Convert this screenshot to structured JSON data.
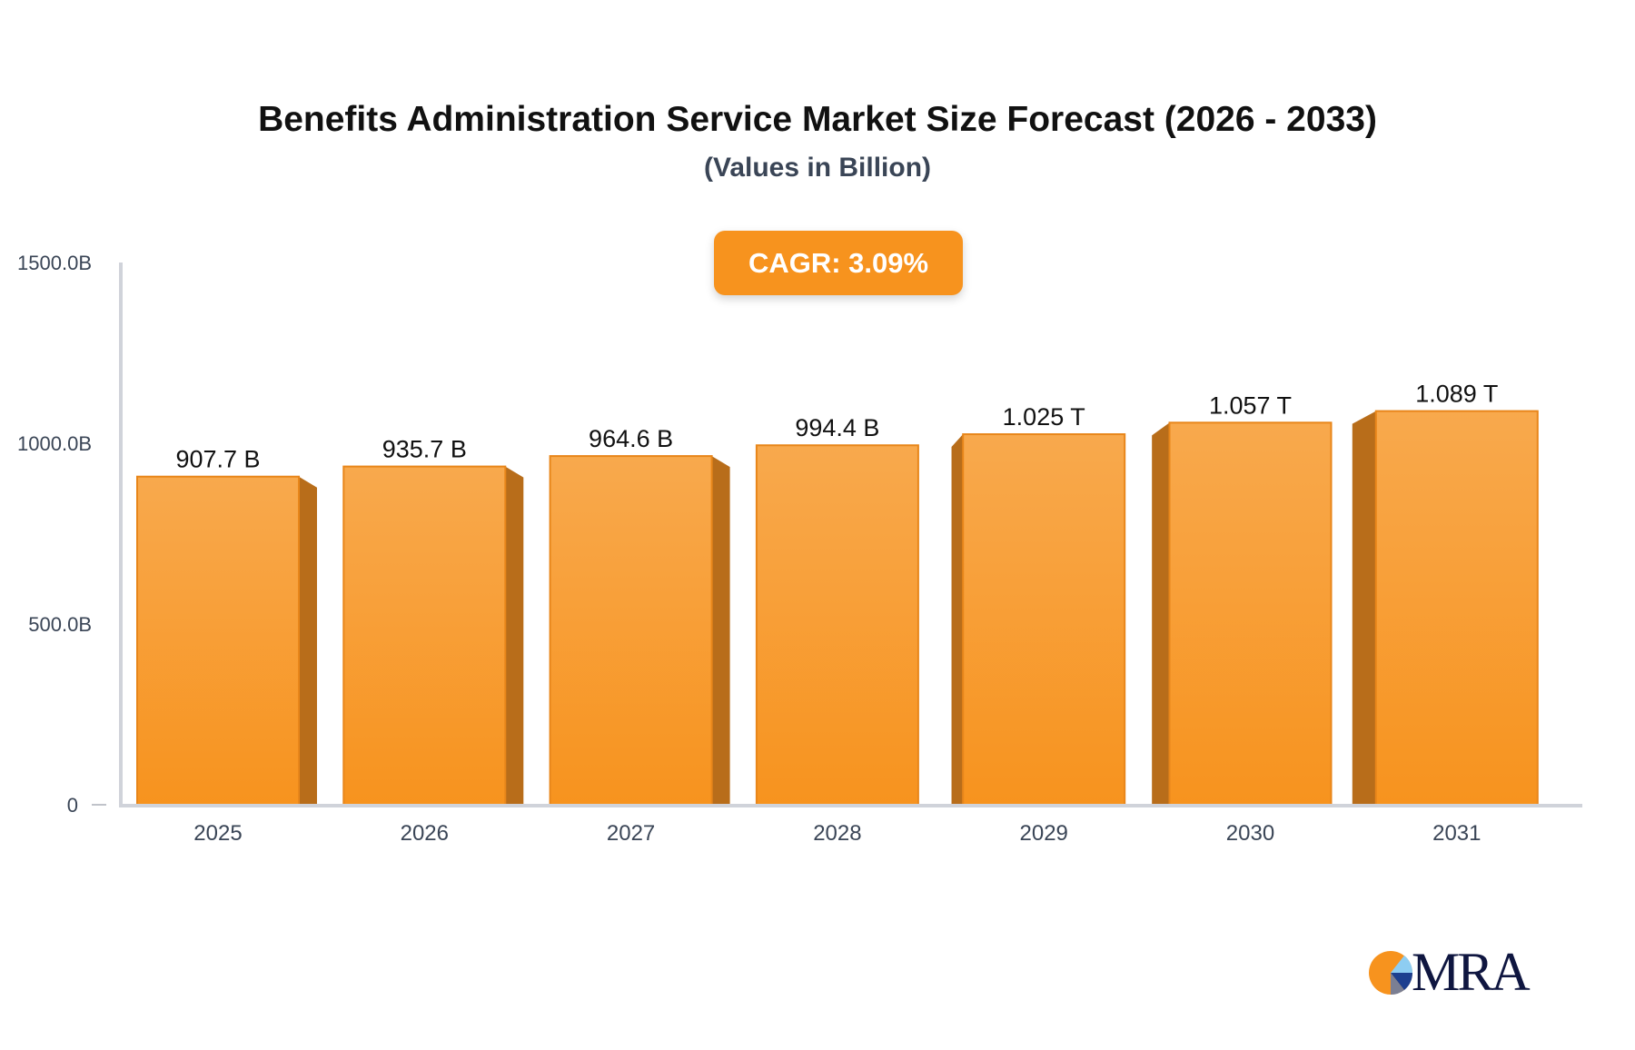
{
  "chart_data": {
    "type": "bar",
    "title": "Benefits Administration Service Market Size Forecast (2026 - 2033)",
    "subtitle": "(Values in Billion)",
    "annotation": "CAGR: 3.09%",
    "categories": [
      "2025",
      "2026",
      "2027",
      "2028",
      "2029",
      "2030",
      "2031"
    ],
    "values": [
      907.7,
      935.7,
      964.6,
      994.4,
      1025,
      1057,
      1089
    ],
    "data_labels": [
      "907.7 B",
      "935.7 B",
      "964.6 B",
      "994.4 B",
      "1.025 T",
      "1.057 T",
      "1.089 T"
    ],
    "yticks": [
      "0",
      "500.0B",
      "1000.0B",
      "1500.0B"
    ],
    "ytick_values": [
      0,
      500,
      1000,
      1500
    ],
    "ylim": [
      0,
      1500
    ],
    "xlabel": "",
    "ylabel": "",
    "grid": false,
    "bar_color": "#f7931e",
    "bar_top_color": "#f8a94d",
    "bar_side_color": "#b86d1a"
  },
  "logo": {
    "text": "MRA"
  }
}
